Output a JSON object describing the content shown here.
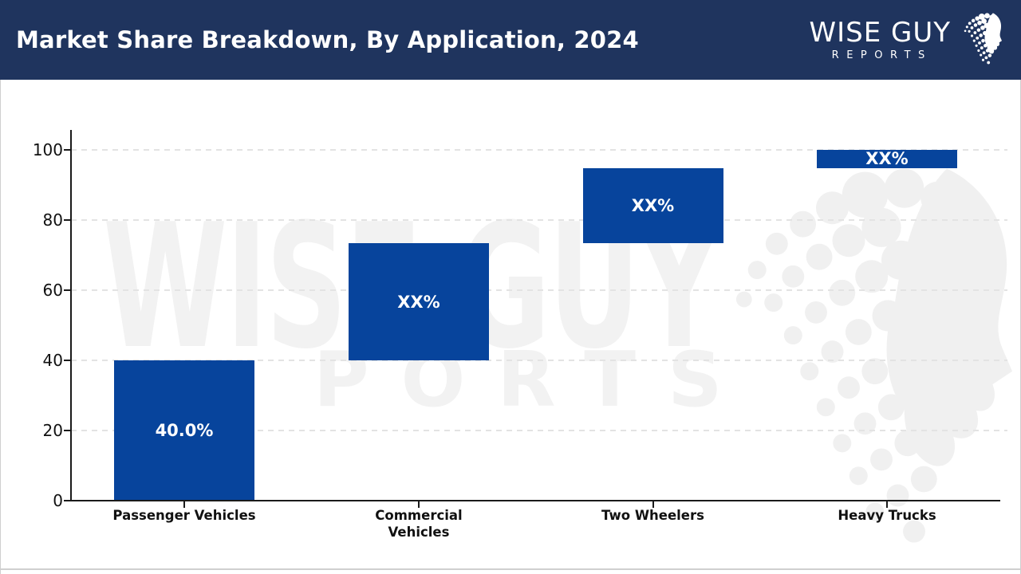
{
  "header": {
    "title": "Market Share Breakdown, By Application, 2024",
    "bg_color": "#1f345e",
    "brand": {
      "line1": "WISE GUY",
      "line2": "REPORTS"
    }
  },
  "watermark": {
    "line1": "WISE GUY",
    "line2": "PORTS"
  },
  "chart_data": {
    "type": "bar",
    "subtype": "waterfall",
    "title": "Market Share Breakdown, By Application, 2024",
    "categories": [
      "Passenger Vehicles",
      "Commercial\nVehicles",
      "Two Wheelers",
      "Heavy Trucks"
    ],
    "segments": [
      {
        "category": "Passenger Vehicles",
        "start": 0,
        "end": 40,
        "value": 40.0,
        "label": "40.0%"
      },
      {
        "category": "Commercial\nVehicles",
        "start": 40,
        "end": 73.4,
        "value": 33.4,
        "label": "XX%"
      },
      {
        "category": "Two Wheelers",
        "start": 73.4,
        "end": 94.8,
        "value": 21.4,
        "label": "XX%"
      },
      {
        "category": "Heavy Trucks",
        "start": 94.8,
        "end": 100,
        "value": 5.2,
        "label": "XX%"
      }
    ],
    "yticks": [
      0,
      20,
      40,
      60,
      80,
      100
    ],
    "ylim": [
      0,
      105.7
    ],
    "grid": "horizontal-dashed",
    "legend": "none",
    "bar_color": "#07449c",
    "label_color": "#ffffff",
    "grid_color": "#e3e3e3",
    "axis_color": "#1a1a1a"
  }
}
